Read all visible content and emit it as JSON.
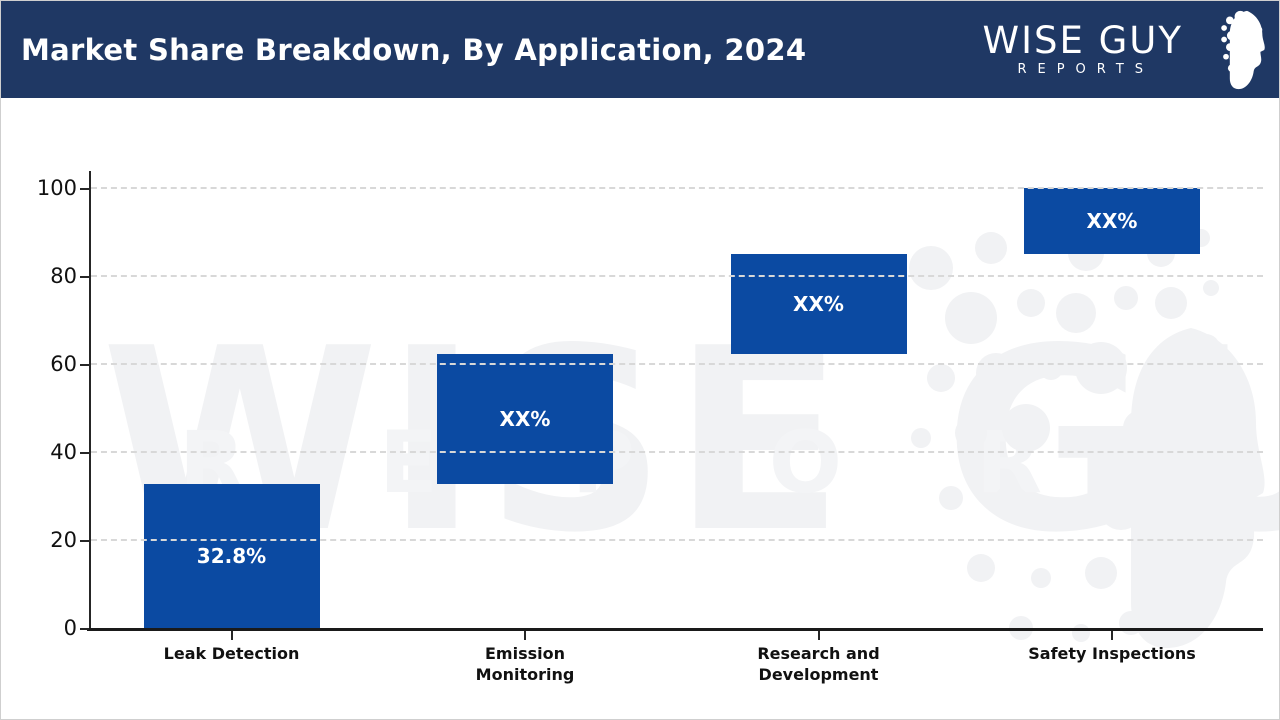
{
  "header": {
    "title": "Market Share Breakdown, By Application, 2024",
    "logo": {
      "line1": "WISE GUY",
      "line2": "REPORTS"
    }
  },
  "watermark": {
    "line1": "WISE GUY",
    "line2": "REPORTS"
  },
  "colors": {
    "header_bg": "#1F3864",
    "bar": "#0B4AA2",
    "grid": "#D8D8D8",
    "axis": "#262626",
    "watermark": "#F1F2F4"
  },
  "chart_data": {
    "type": "bar",
    "subtype": "waterfall",
    "title": "Market Share Breakdown, By Application, 2024",
    "categories": [
      "Leak Detection",
      "Emission\nMonitoring",
      "Research and\nDevelopment",
      "Safety Inspections"
    ],
    "yticks": [
      0,
      20,
      40,
      60,
      80,
      100
    ],
    "ylim": [
      0,
      100
    ],
    "grid": "horizontal-dashed",
    "legend": "none",
    "bars": [
      {
        "category": "Leak Detection",
        "start": 0,
        "end": 32.8,
        "label": "32.8%"
      },
      {
        "category": "Emission Monitoring",
        "start": 32.8,
        "end": 62.3,
        "label": "XX%"
      },
      {
        "category": "Research and Development",
        "start": 62.3,
        "end": 85.0,
        "label": "XX%"
      },
      {
        "category": "Safety Inspections",
        "start": 85.0,
        "end": 100.0,
        "label": "XX%"
      }
    ]
  }
}
